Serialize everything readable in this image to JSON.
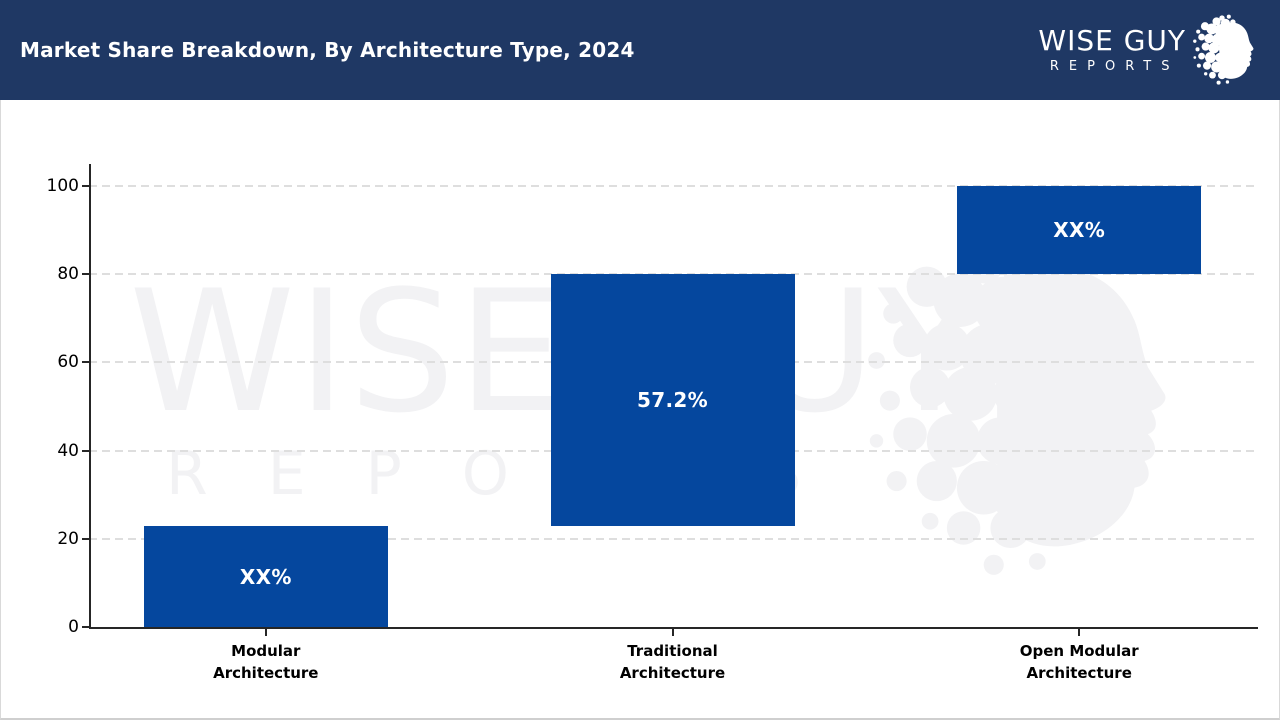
{
  "header": {
    "title": "Market Share Breakdown, By Architecture Type, 2024",
    "logo": {
      "wordmark": "WISE GUY",
      "subtext": "REPORTS"
    }
  },
  "watermark": {
    "line1": "WISE GUY",
    "line2": "REPORTS"
  },
  "chart_data": {
    "type": "bar",
    "subtype": "floating-segment-waterfall",
    "title": "Market Share Breakdown, By Architecture Type, 2024",
    "xlabel": "",
    "ylabel": "",
    "categories": [
      "Modular Architecture",
      "Traditional Architecture",
      "Open Modular Architecture"
    ],
    "category_lines": [
      [
        "Modular",
        "Architecture"
      ],
      [
        "Traditional",
        "Architecture"
      ],
      [
        "Open Modular",
        "Architecture"
      ]
    ],
    "bars": [
      {
        "category": "Modular Architecture",
        "from": 0,
        "to": 22.8,
        "height": 22.8,
        "label": "XX%"
      },
      {
        "category": "Traditional Architecture",
        "from": 22.8,
        "to": 80,
        "height": 57.2,
        "label": "57.2%"
      },
      {
        "category": "Open Modular Architecture",
        "from": 80,
        "to": 100,
        "height": 20,
        "label": "XX%"
      }
    ],
    "ylim": [
      0,
      100
    ],
    "yticks": [
      0,
      20,
      40,
      60,
      80,
      100
    ],
    "grid": "horizontal-dashed",
    "legend": "none",
    "colors": {
      "bar": "#05479e",
      "bar_label": "#ffffff",
      "axis": "#262626",
      "gridline": "#dedede",
      "tick_label": "#000000"
    }
  },
  "theme": {
    "header_bg": "#1f3864",
    "header_text": "#ffffff",
    "watermark_color": "#f2f2f4",
    "background": "#ffffff"
  }
}
